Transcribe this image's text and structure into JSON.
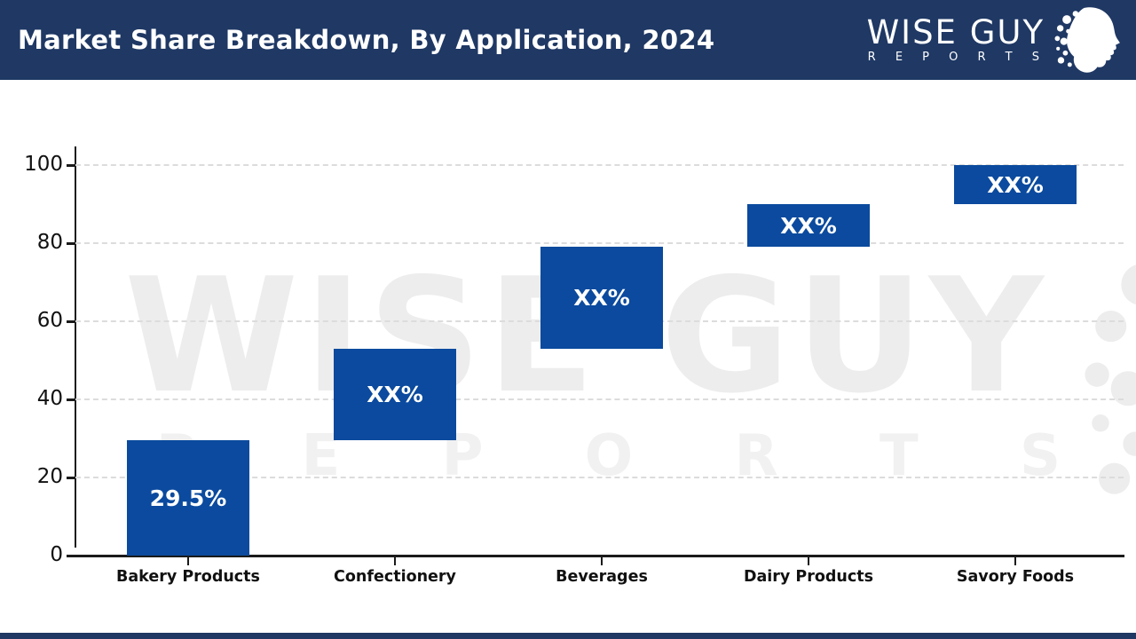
{
  "header": {
    "title": "Market Share Breakdown, By Application, 2024",
    "background_color": "#1f3864",
    "logo": {
      "line1": "WISE GUY",
      "line2": "R E P O R T S"
    }
  },
  "watermark": {
    "line1": "WISE GUY",
    "line2": "R E P O R T S"
  },
  "chart_data": {
    "type": "waterfall",
    "title": "Market Share Breakdown, By Application, 2024",
    "categories": [
      "Bakery Products",
      "Confectionery",
      "Beverages",
      "Dairy Products",
      "Savory Foods"
    ],
    "segments": [
      {
        "category": "Bakery Products",
        "start": 0,
        "end": 29.5,
        "label": "29.5%"
      },
      {
        "category": "Confectionery",
        "start": 29.5,
        "end": 53,
        "label": "XX%"
      },
      {
        "category": "Beverages",
        "start": 53,
        "end": 79,
        "label": "XX%"
      },
      {
        "category": "Dairy Products",
        "start": 79,
        "end": 90,
        "label": "XX%"
      },
      {
        "category": "Savory Foods",
        "start": 90,
        "end": 100,
        "label": "XX%"
      }
    ],
    "xlabel": "",
    "ylabel": "",
    "ylim": [
      0,
      105
    ],
    "yticks": [
      0,
      20,
      40,
      60,
      80,
      100
    ],
    "grid": "horizontal-dashed",
    "legend": "none",
    "bar_color": "#0b4a9e",
    "bar_label_color": "#ffffff",
    "gridline_color": "#dcdcdc"
  }
}
